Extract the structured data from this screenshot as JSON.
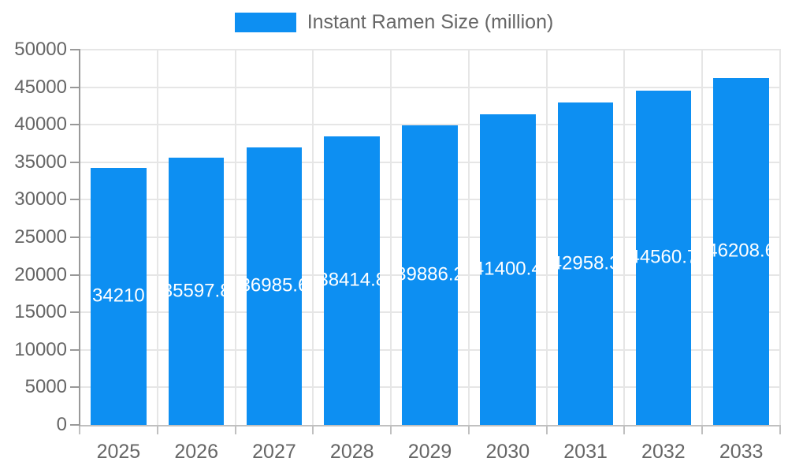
{
  "chart_data": {
    "type": "bar",
    "title": "Instant Ramen Size (million)",
    "legend": {
      "position": "top",
      "entries": [
        "Instant Ramen Size (million)"
      ]
    },
    "categories": [
      "2025",
      "2026",
      "2027",
      "2028",
      "2029",
      "2030",
      "2031",
      "2032",
      "2033"
    ],
    "series": [
      {
        "name": "Instant Ramen Size (million)",
        "values": [
          34210,
          35597.8,
          36985.6,
          38414.8,
          39886.2,
          41400.4,
          42958.3,
          44560.7,
          46208.6
        ]
      }
    ],
    "bar_value_labels": [
      "34210",
      "35597.8",
      "36985.6",
      "38414.8",
      "39886.2",
      "41400.4",
      "42958.3",
      "44560.7",
      "46208.6"
    ],
    "xlabel": "",
    "ylabel": "",
    "ylim": [
      0,
      50000
    ],
    "yticks": [
      0,
      5000,
      10000,
      15000,
      20000,
      25000,
      30000,
      35000,
      40000,
      45000,
      50000
    ],
    "grid": true,
    "colors": {
      "bar": "#0d8ff2",
      "axis_text": "#666666",
      "bar_label_text": "#ffffff",
      "gridline": "#e6e6e6",
      "axis_line": "#999999",
      "zero_line": "#c0c0c0",
      "background": "#ffffff"
    }
  }
}
